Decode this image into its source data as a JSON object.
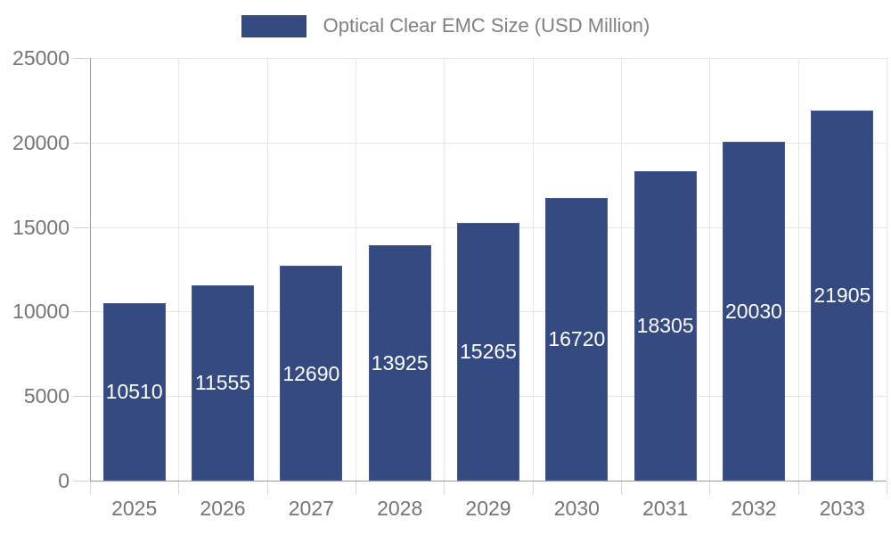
{
  "chart_data": {
    "type": "bar",
    "title": "Optical Clear EMC Size (USD Million)",
    "legend": {
      "label": "Optical Clear EMC Size (USD Million)",
      "position": "top"
    },
    "categories": [
      "2025",
      "2026",
      "2027",
      "2028",
      "2029",
      "2030",
      "2031",
      "2032",
      "2033"
    ],
    "values": [
      10510,
      11555,
      12690,
      13925,
      15265,
      16720,
      18305,
      20030,
      21905
    ],
    "xlabel": "",
    "ylabel": "",
    "ylim": [
      0,
      25000
    ],
    "ytick_interval": 5000,
    "ytick_labels": [
      "0",
      "5000",
      "10000",
      "15000",
      "20000",
      "25000"
    ],
    "grid": true,
    "colors": {
      "bar": "#364A82",
      "value_label": "#FFFFFF",
      "tick_label": "#757575",
      "grid_line": "#E6E6E6",
      "axis_line": "#9B9B9B"
    }
  }
}
